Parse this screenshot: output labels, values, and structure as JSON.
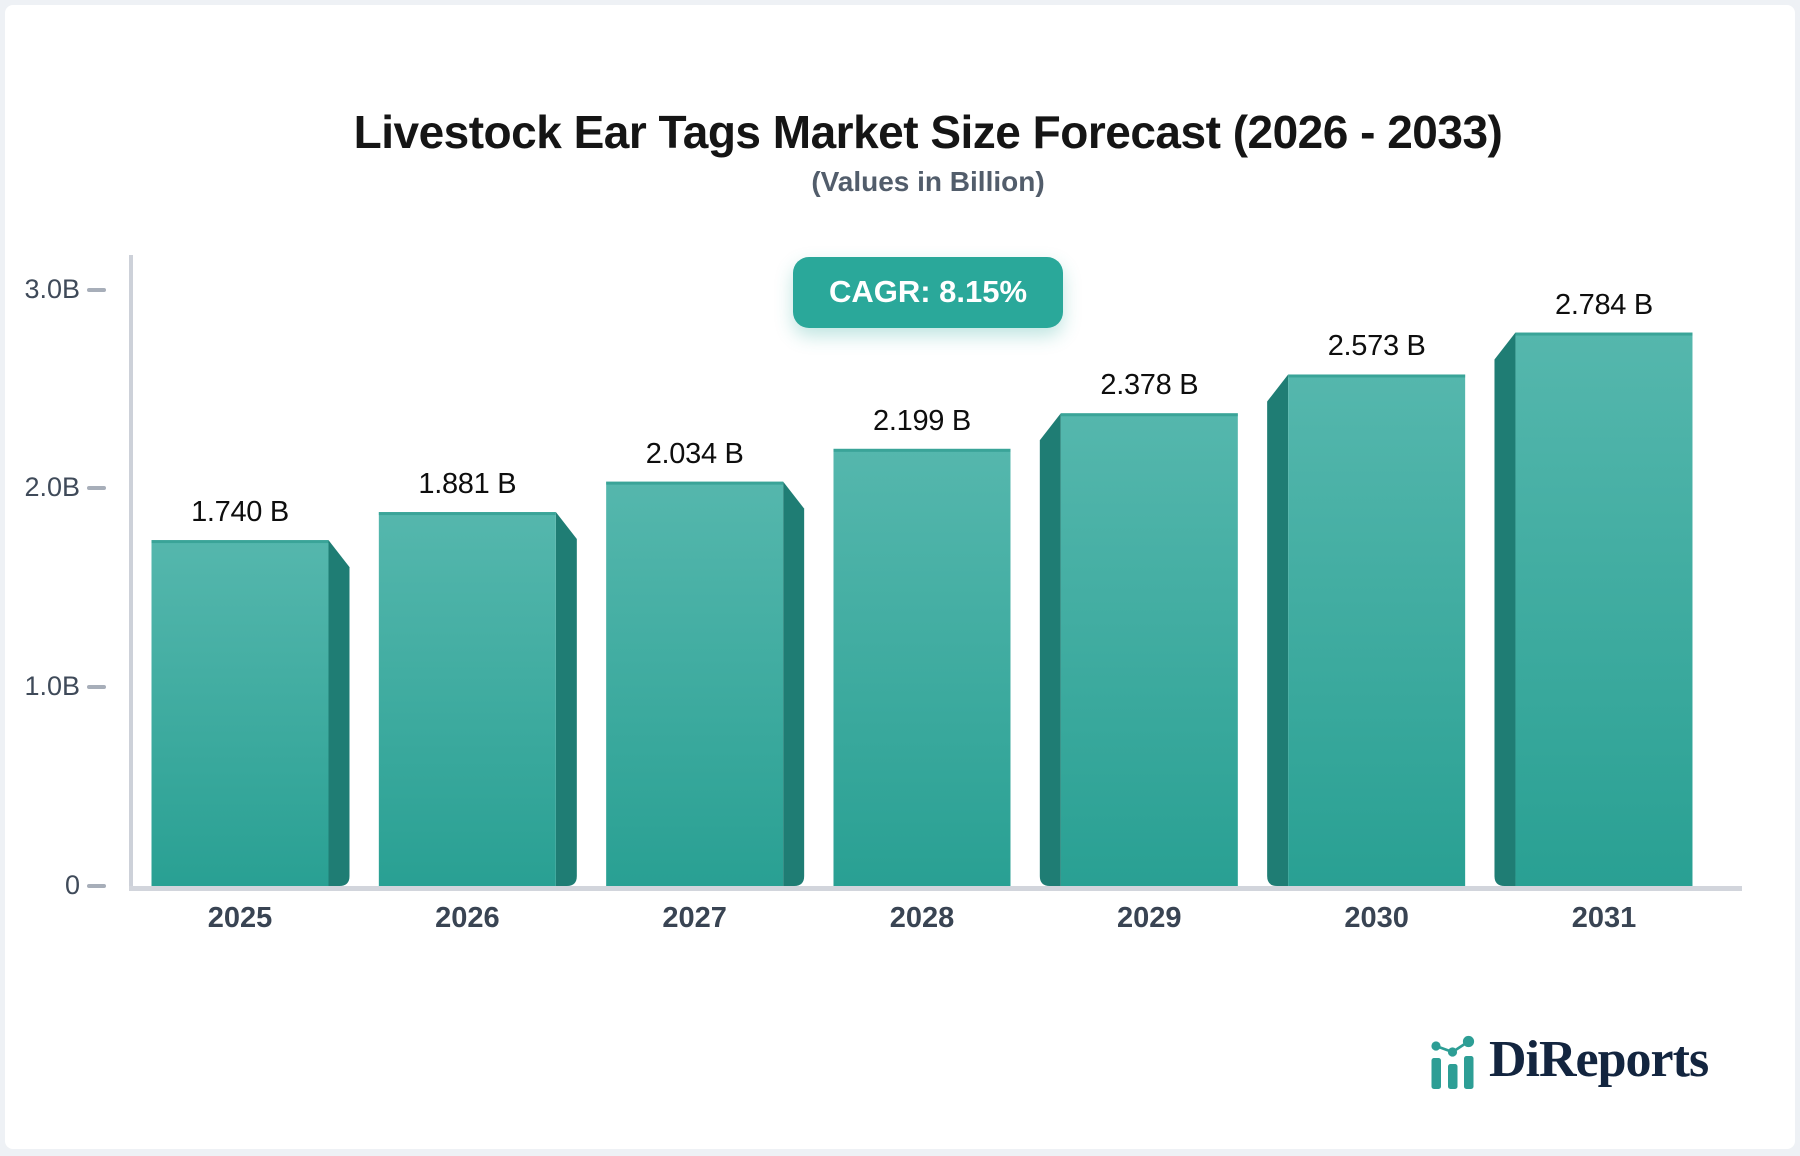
{
  "page": {
    "background": "#eef1f5",
    "card_background": "#ffffff"
  },
  "header": {
    "title": "Livestock Ear Tags Market Size Forecast (2026 - 2033)",
    "subtitle": "(Values in Billion)",
    "badge": {
      "label": "CAGR: 8.15%",
      "background": "#2aa89a",
      "text_color": "#ffffff"
    }
  },
  "chart_data": {
    "type": "bar",
    "title": "Livestock Ear Tags Market Size Forecast (2026 - 2033)",
    "subtitle": "(Values in Billion)",
    "unit": "Billion",
    "cagr": "8.15%",
    "categories": [
      "2025",
      "2026",
      "2027",
      "2028",
      "2029",
      "2030",
      "2031"
    ],
    "values": [
      1.74,
      1.881,
      2.034,
      2.199,
      2.378,
      2.573,
      2.784
    ],
    "value_labels": [
      "1.740 B",
      "1.881 B",
      "2.034 B",
      "2.199 B",
      "2.378 B",
      "2.573 B",
      "2.784 B"
    ],
    "ylim": [
      0,
      3.0
    ],
    "yticks": [
      {
        "value": 3.0,
        "label": "3.0B"
      },
      {
        "value": 2.0,
        "label": "2.0B"
      },
      {
        "value": 1.0,
        "label": "1.0B"
      },
      {
        "value": 0.0,
        "label": "0"
      }
    ],
    "grid": false,
    "legend": false,
    "colors": {
      "bar_gradient_top": "#55b7ad",
      "bar_gradient_bottom": "#29a093",
      "bar_top_edge": "#2d9a8e",
      "bar_side_bevel": "#1f7d74",
      "axis": "#cdd1d9",
      "tick": "#a7aeb9",
      "y_label": "#3f4a59",
      "x_label": "#394453",
      "value_label": "#0e0e0e"
    }
  },
  "footer": {
    "brand": "DiReports",
    "brand_icon": "mini-bar-chart-with-dots"
  }
}
